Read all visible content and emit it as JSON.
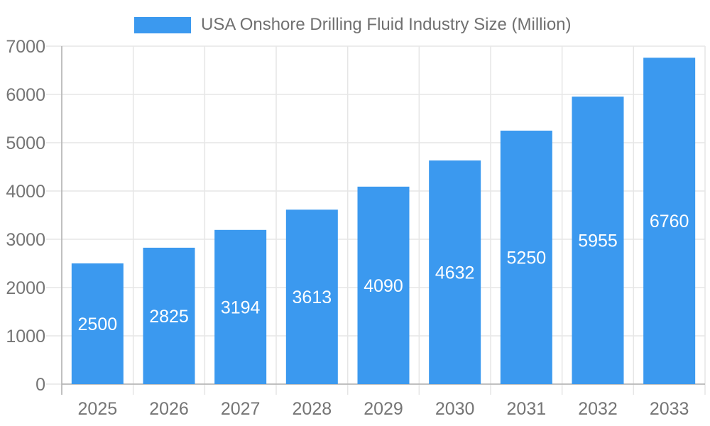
{
  "page": {
    "background_color": "#FFFFFF"
  },
  "legend": {
    "position": "top",
    "swatch_color": "#3B99EF"
  },
  "chart_data": {
    "type": "bar",
    "title": "USA Onshore Drilling Fluid Industry Size (Million)",
    "categories": [
      "2025",
      "2026",
      "2027",
      "2028",
      "2029",
      "2030",
      "2031",
      "2032",
      "2033"
    ],
    "values": [
      2500,
      2825,
      3194,
      3613,
      4090,
      4632,
      5250,
      5955,
      6760
    ],
    "xlabel": "",
    "ylabel": "",
    "ylim": [
      0,
      7000
    ],
    "ytick_step": 1000,
    "yticks": [
      0,
      1000,
      2000,
      3000,
      4000,
      5000,
      6000,
      7000
    ],
    "grid": true,
    "legend_position": "top",
    "bar_color": "#3B99EF",
    "bar_label_color": "#FFFFFF",
    "tick_label_color": "#757575",
    "title_color": "#707070",
    "grid_color": "#E6E6E6",
    "axis_line_color": "#B0B0B0"
  }
}
